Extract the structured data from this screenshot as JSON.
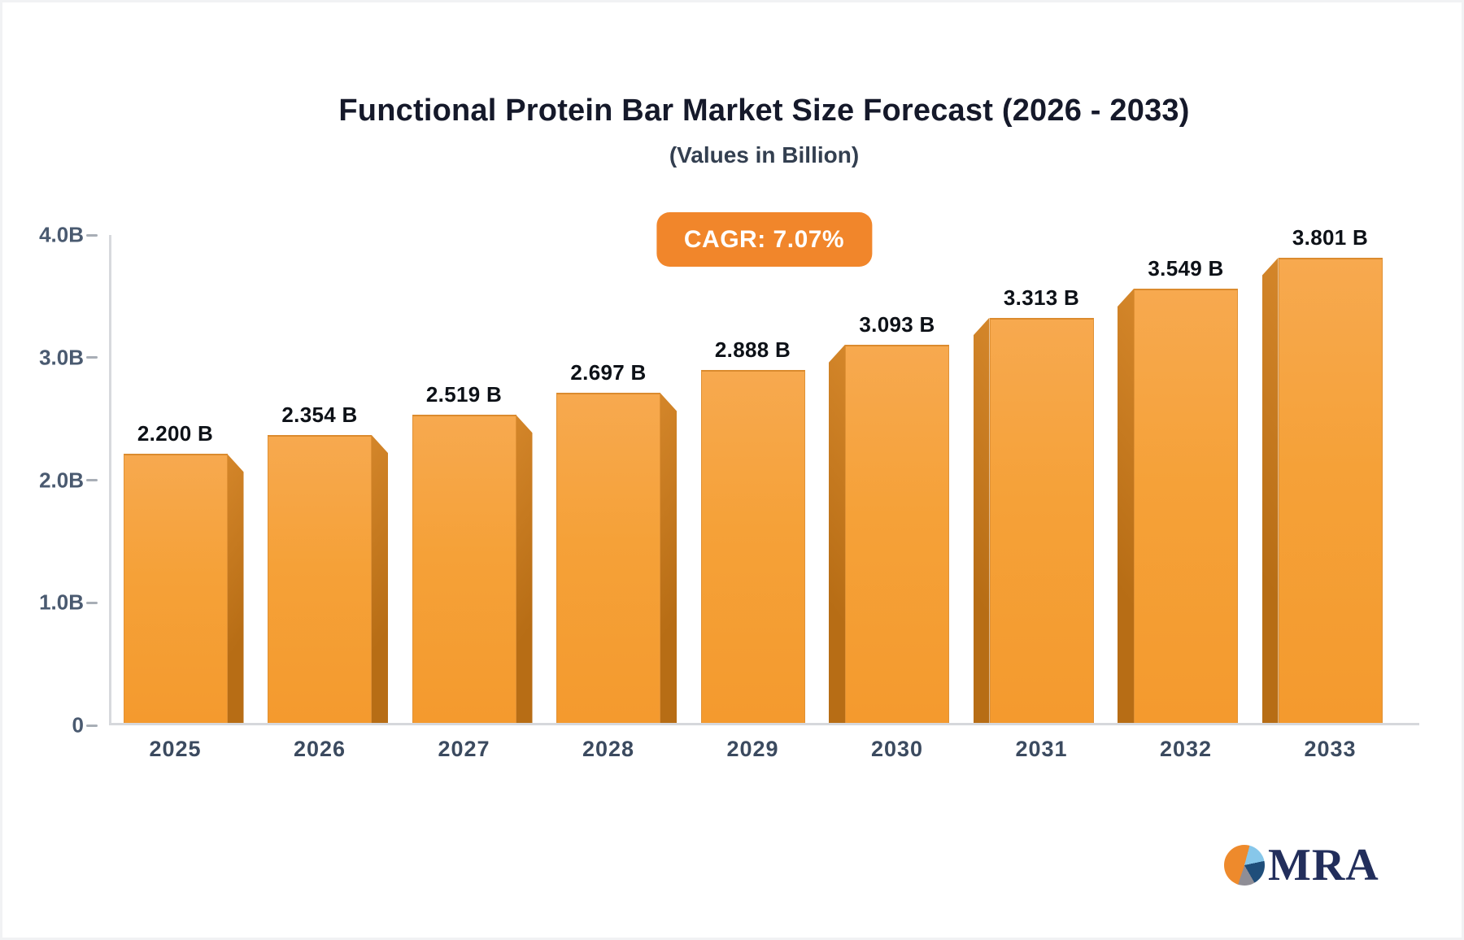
{
  "header": {
    "title": "Functional Protein Bar Market Size Forecast (2026 - 2033)",
    "subtitle": "(Values in Billion)",
    "cagr_badge": "CAGR: 7.07%"
  },
  "chart_data": {
    "type": "bar",
    "title": "Functional Protein Bar Market Size Forecast (2026 - 2033)",
    "subtitle": "(Values in Billion)",
    "cagr": "7.07%",
    "categories": [
      "2025",
      "2026",
      "2027",
      "2028",
      "2029",
      "2030",
      "2031",
      "2032",
      "2033"
    ],
    "values": [
      2.2,
      2.354,
      2.519,
      2.697,
      2.888,
      3.093,
      3.313,
      3.549,
      3.801
    ],
    "value_labels": [
      "2.200 B",
      "2.354 B",
      "2.519 B",
      "2.697 B",
      "2.888 B",
      "3.093 B",
      "3.313 B",
      "3.549 B",
      "3.801 B"
    ],
    "xlabel": "",
    "ylabel": "",
    "ylim": [
      0,
      4.0
    ],
    "y_ticks": [
      {
        "label": "0",
        "value": 0
      },
      {
        "label": "1.0B",
        "value": 1
      },
      {
        "label": "2.0B",
        "value": 2
      },
      {
        "label": "3.0B",
        "value": 3
      },
      {
        "label": "4.0B",
        "value": 4
      }
    ],
    "grid": false,
    "legend": false,
    "colors": {
      "bar_face_top": "#f7a94f",
      "bar_face_bottom": "#f49a2e",
      "bar_side": "#b76d15",
      "badge_background": "#f1862b",
      "axis_line": "#d6d8dc",
      "tick_text": "#4a5a70",
      "value_text": "#0d1117",
      "title_text": "#15192a"
    }
  },
  "logo": {
    "text": "MRA",
    "pie_colors": {
      "orange": "#ee8a2c",
      "light_blue": "#87c7ea",
      "navy": "#1f4e7a",
      "gray": "#8f8e96"
    }
  }
}
